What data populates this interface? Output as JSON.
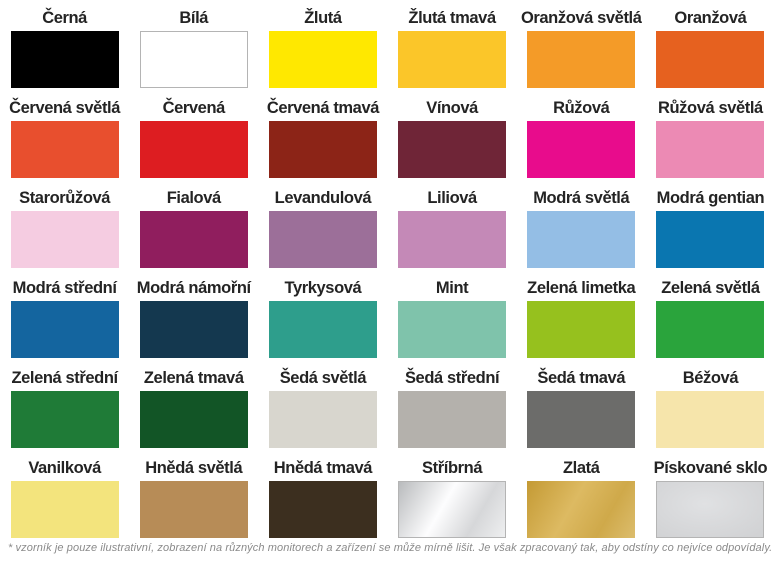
{
  "chart_data": {
    "type": "table",
    "title": "",
    "columns": [
      "name",
      "hex",
      "finish"
    ],
    "rows": [
      {
        "name": "Černá",
        "hex": "#000000",
        "finish": "solid"
      },
      {
        "name": "Bílá",
        "hex": "#ffffff",
        "finish": "white"
      },
      {
        "name": "Žlutá",
        "hex": "#ffe800",
        "finish": "solid"
      },
      {
        "name": "Žlutá tmavá",
        "hex": "#fbc629",
        "finish": "solid"
      },
      {
        "name": "Oranžová světlá",
        "hex": "#f49b28",
        "finish": "solid"
      },
      {
        "name": "Oranžová",
        "hex": "#e6611f",
        "finish": "solid"
      },
      {
        "name": "Červená světlá",
        "hex": "#e84f2e",
        "finish": "solid"
      },
      {
        "name": "Červená",
        "hex": "#dd1d21",
        "finish": "solid"
      },
      {
        "name": "Červená tmavá",
        "hex": "#8c2417",
        "finish": "solid"
      },
      {
        "name": "Vínová",
        "hex": "#6f2537",
        "finish": "solid"
      },
      {
        "name": "Růžová",
        "hex": "#e80c8c",
        "finish": "solid"
      },
      {
        "name": "Růžová světlá",
        "hex": "#ec8ab4",
        "finish": "solid"
      },
      {
        "name": "Starorůžová",
        "hex": "#f5cce1",
        "finish": "solid"
      },
      {
        "name": "Fialová",
        "hex": "#901e5e",
        "finish": "solid"
      },
      {
        "name": "Levandulová",
        "hex": "#9c6f99",
        "finish": "solid"
      },
      {
        "name": "Liliová",
        "hex": "#c489b7",
        "finish": "solid"
      },
      {
        "name": "Modrá světlá",
        "hex": "#94bee5",
        "finish": "solid"
      },
      {
        "name": "Modrá gentian",
        "hex": "#0a76b0",
        "finish": "solid"
      },
      {
        "name": "Modrá střední",
        "hex": "#14659f",
        "finish": "solid"
      },
      {
        "name": "Modrá námořní",
        "hex": "#14384f",
        "finish": "solid"
      },
      {
        "name": "Tyrkysová",
        "hex": "#2e9e8c",
        "finish": "solid"
      },
      {
        "name": "Mint",
        "hex": "#7fc3ab",
        "finish": "solid"
      },
      {
        "name": "Zelená limetka",
        "hex": "#96c11e",
        "finish": "solid"
      },
      {
        "name": "Zelená světlá",
        "hex": "#2aa43c",
        "finish": "solid"
      },
      {
        "name": "Zelená střední",
        "hex": "#1f7b37",
        "finish": "solid"
      },
      {
        "name": "Zelená tmavá",
        "hex": "#125526",
        "finish": "solid"
      },
      {
        "name": "Šedá světlá",
        "hex": "#d8d6ce",
        "finish": "solid"
      },
      {
        "name": "Šedá střední",
        "hex": "#b4b1ac",
        "finish": "solid"
      },
      {
        "name": "Šedá tmavá",
        "hex": "#6c6c6a",
        "finish": "solid"
      },
      {
        "name": "Béžová",
        "hex": "#f6e5ab",
        "finish": "solid"
      },
      {
        "name": "Vanilková",
        "hex": "#f3e47d",
        "finish": "solid"
      },
      {
        "name": "Hnědá světlá",
        "hex": "#b78c57",
        "finish": "solid"
      },
      {
        "name": "Hnědá tmavá",
        "hex": "#3c2f1f",
        "finish": "solid"
      },
      {
        "name": "Stříbrná",
        "hex": "#d9dadc",
        "finish": "silver"
      },
      {
        "name": "Zlatá",
        "hex": "#d3ae52",
        "finish": "gold"
      },
      {
        "name": "Pískované sklo",
        "hex": "#d5d6d8",
        "finish": "frosted"
      }
    ]
  },
  "finishes": {
    "silver": {
      "angle": "120deg",
      "stops": [
        "#b9bbbd",
        "#fdfdfe",
        "#d6d7d9",
        "#eeeff0"
      ]
    },
    "gold": {
      "angle": "120deg",
      "stops": [
        "#c49a34",
        "#ddba62",
        "#cfa94a",
        "#dcbd6d"
      ]
    },
    "frosted": {
      "center": "#e0e1e3",
      "edge": "#d1d2d4"
    }
  },
  "footnote": {
    "text": "* vzorník je pouze ilustrativní, zobrazení na různých monitorech a zařízení se může mírně lišit. Je však zpracovaný tak, aby odstíny co nejvíce odpovídaly."
  }
}
